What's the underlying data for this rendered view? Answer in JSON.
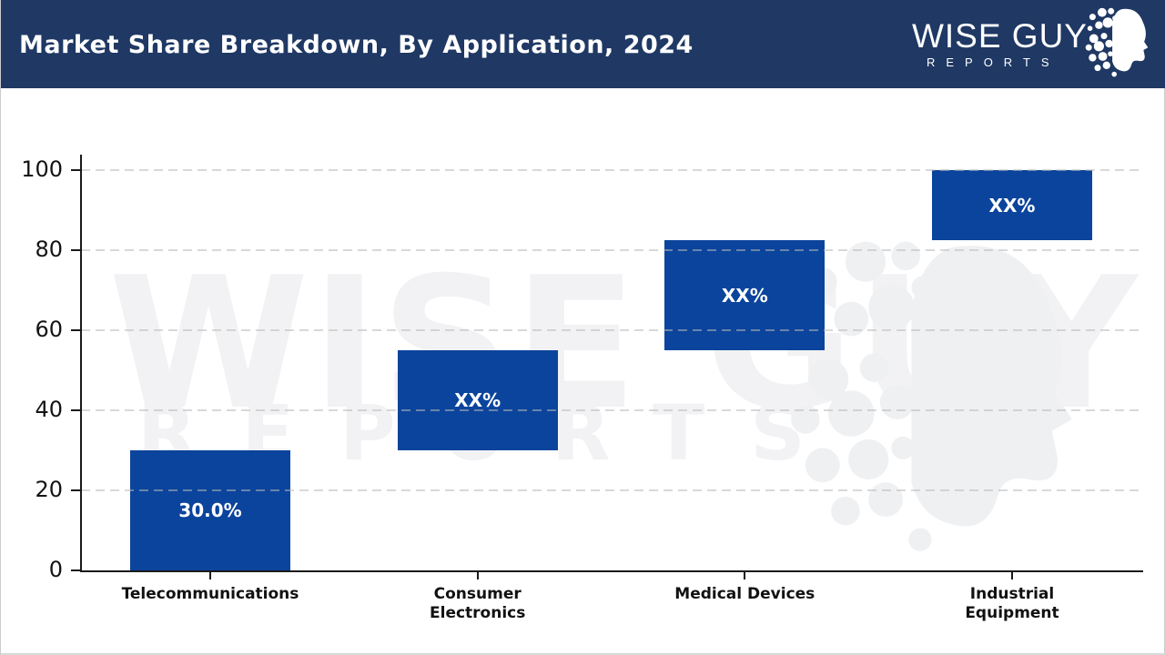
{
  "header": {
    "title": "Market Share Breakdown, By Application, 2024",
    "bg_color": "#1f3864",
    "logo": {
      "line1": "WISE GUY",
      "line2": "REPORTS"
    }
  },
  "watermark": {
    "line1": "WISE GUY",
    "line2": "REPORTS"
  },
  "chart_data": {
    "type": "bar",
    "subtype": "floating-waterfall",
    "title": "Market Share Breakdown, By Application, 2024",
    "categories": [
      "Telecommunications",
      "Consumer Electronics",
      "Medical Devices",
      "Industrial Equipment"
    ],
    "bars": [
      {
        "category": "Telecommunications",
        "label_lines": [
          "Telecommunications"
        ],
        "start": 0,
        "end": 30,
        "value": 30,
        "label": "30.0%"
      },
      {
        "category": "Consumer Electronics",
        "label_lines": [
          "Consumer",
          "Electronics"
        ],
        "start": 30,
        "end": 55,
        "value": 25,
        "label": "XX%"
      },
      {
        "category": "Medical Devices",
        "label_lines": [
          "Medical Devices"
        ],
        "start": 55,
        "end": 82.5,
        "value": 27.5,
        "label": "XX%"
      },
      {
        "category": "Industrial Equipment",
        "label_lines": [
          "Industrial",
          "Equipment"
        ],
        "start": 82.5,
        "end": 100,
        "value": 17.5,
        "label": "XX%"
      }
    ],
    "xlabel": "",
    "ylabel": "",
    "ylim": [
      0,
      100
    ],
    "yticks": [
      0,
      20,
      40,
      60,
      80,
      100
    ],
    "grid": "horizontal-dashed",
    "bar_color": "#0b449c",
    "axis_color": "#1a1a1a",
    "legend": "none"
  }
}
